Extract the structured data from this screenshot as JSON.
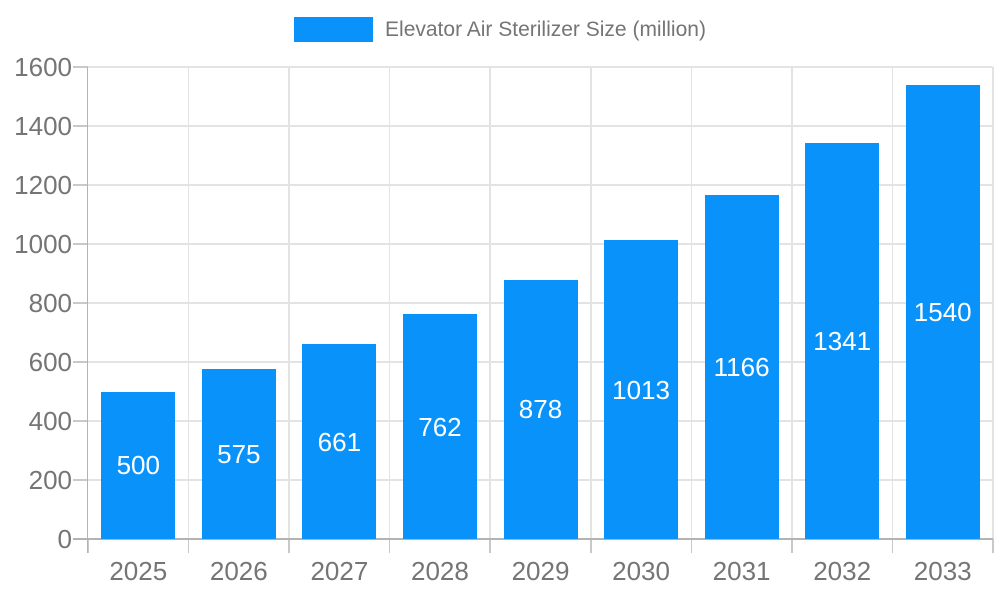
{
  "chart_data": {
    "type": "bar",
    "title": "Elevator Air Sterilizer Size (million)",
    "categories": [
      "2025",
      "2026",
      "2027",
      "2028",
      "2029",
      "2030",
      "2031",
      "2032",
      "2033"
    ],
    "values": [
      500,
      575,
      661,
      762,
      878,
      1013,
      1166,
      1341,
      1540
    ],
    "xlabel": "",
    "ylabel": "",
    "ylim": [
      0,
      1600
    ],
    "ytick_step": 200,
    "yticks": [
      0,
      200,
      400,
      600,
      800,
      1000,
      1200,
      1400,
      1600
    ],
    "grid": true,
    "legend_position": "top",
    "value_labels_shown": true,
    "colors": {
      "bar": "#0892fa",
      "value_label": "#ffffff",
      "axis_text": "#757575",
      "grid": "#e3e3e3",
      "axis_line": "#b3b3b3",
      "tick": "#c9c9c9",
      "background": "#ffffff"
    }
  }
}
